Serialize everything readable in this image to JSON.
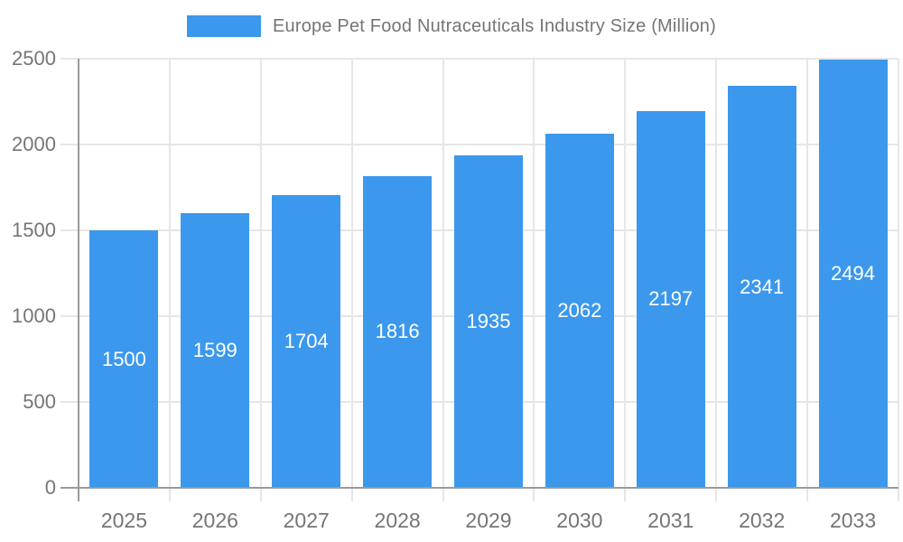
{
  "chart_data": {
    "type": "bar",
    "title": "Europe Pet Food Nutraceuticals Industry Size (Million)",
    "categories": [
      "2025",
      "2026",
      "2027",
      "2028",
      "2029",
      "2030",
      "2031",
      "2032",
      "2033"
    ],
    "values": [
      1500,
      1599,
      1704,
      1816,
      1935,
      2062,
      2197,
      2341,
      2494
    ],
    "series": [
      {
        "name": "Europe Pet Food Nutraceuticals Industry Size (Million)",
        "values": [
          1500,
          1599,
          1704,
          1816,
          1935,
          2062,
          2197,
          2341,
          2494
        ]
      }
    ],
    "xlabel": "",
    "ylabel": "",
    "ylim": [
      0,
      2500
    ],
    "yticks": [
      0,
      500,
      1000,
      1500,
      2000,
      2500
    ],
    "grid": "on",
    "legend_position": "top-center",
    "bar_labels_position": "inside-middle",
    "colors": {
      "bar": "#3B98EC",
      "bar_label": "#FFFFFF",
      "axis_text": "#757575",
      "gridline": "#E6E6E6",
      "axis_line": "#9A9A9A",
      "background": "#FFFFFF"
    }
  }
}
